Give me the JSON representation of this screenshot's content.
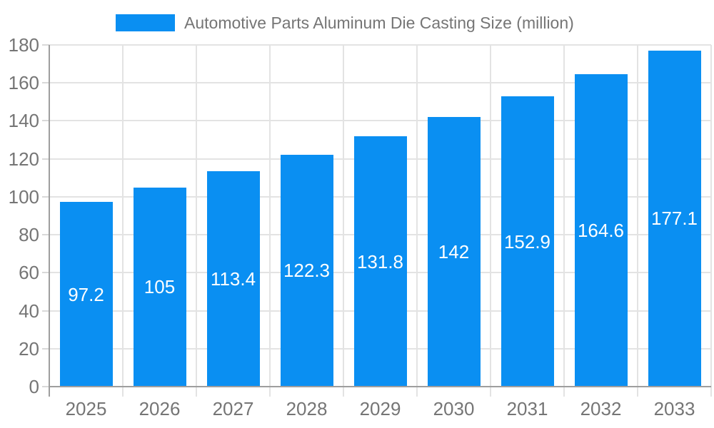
{
  "legend": {
    "label": "Automotive Parts Aluminum Die Casting Size (million)"
  },
  "chart_data": {
    "type": "bar",
    "title": "Automotive Parts Aluminum Die Casting Size (million)",
    "series_name": "Automotive Parts Aluminum Die Casting Size (million)",
    "categories": [
      "2025",
      "2026",
      "2027",
      "2028",
      "2029",
      "2030",
      "2031",
      "2032",
      "2033"
    ],
    "values": [
      97.2,
      105,
      113.4,
      122.3,
      131.8,
      142,
      152.9,
      164.6,
      177.1
    ],
    "value_labels": [
      "97.2",
      "105",
      "113.4",
      "122.3",
      "131.8",
      "142",
      "152.9",
      "164.6",
      "177.1"
    ],
    "xlabel": "",
    "ylabel": "",
    "ylim": [
      0,
      180
    ],
    "ytick_step": 20,
    "yticks": [
      0,
      20,
      40,
      60,
      80,
      100,
      120,
      140,
      160,
      180
    ],
    "grid": true,
    "legend_position": "top-center",
    "colors": {
      "bar": "#0a8ff2",
      "grid": "#e3e3e3",
      "axis": "#9e9e9e",
      "tick": "#d9d9d9",
      "label_text": "#757575",
      "value_text": "#ffffff",
      "background": "#ffffff"
    }
  }
}
